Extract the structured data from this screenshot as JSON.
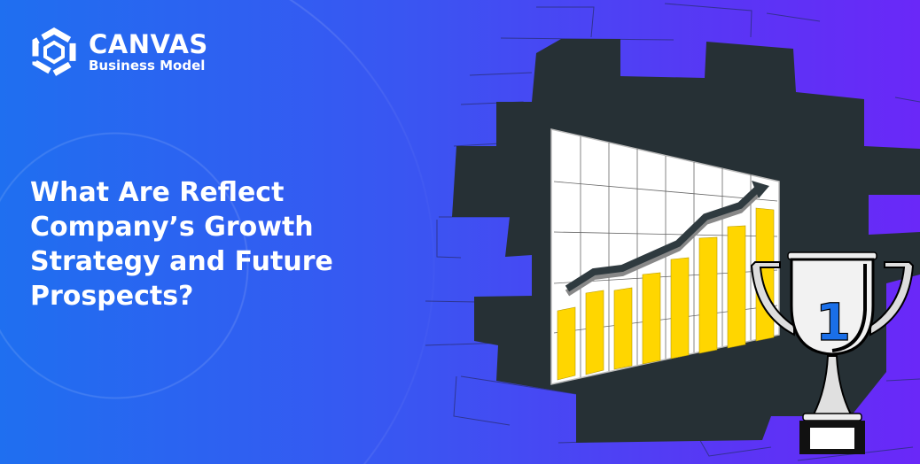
{
  "brand": {
    "name": "CANVAS",
    "subtitle": "Business Model",
    "icon": "hexagon-logo-icon"
  },
  "headline": {
    "lines": [
      "What Are Reflect",
      "Company’s Growth",
      "Strategy and Future",
      "Prospects?"
    ]
  },
  "illustration": {
    "trophy_number": "1",
    "colors": {
      "bars": "#FFD600",
      "hole": "#263035",
      "trophy_number": "#1a6fe8"
    }
  }
}
